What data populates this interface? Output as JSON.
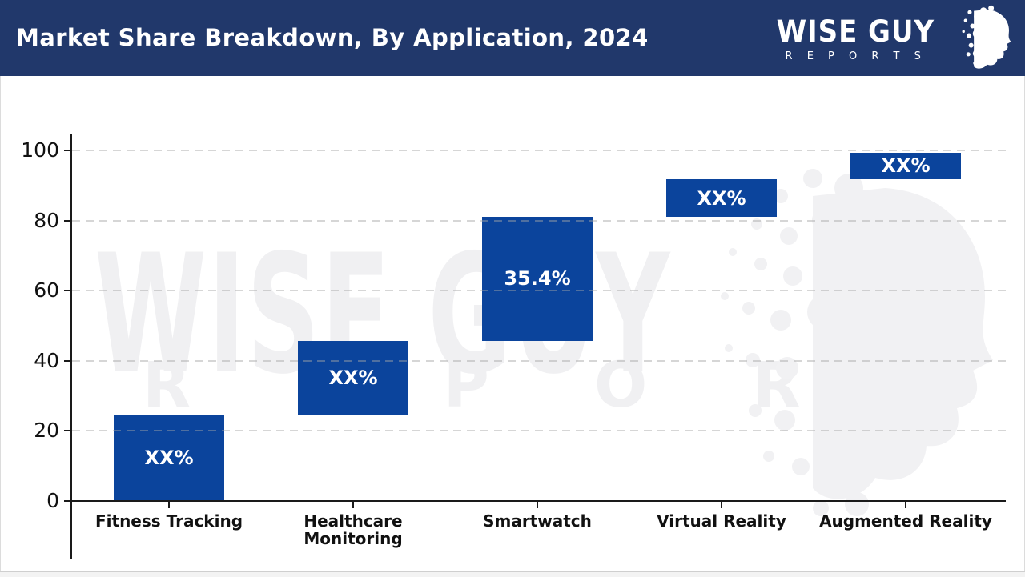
{
  "header": {
    "title": "Market Share Breakdown, By Application, 2024",
    "logo": {
      "line1": "WISE GUY",
      "line2": "R E P O R T S"
    }
  },
  "watermark": {
    "line1": "WISE GUY",
    "line2": "R E P O R T S"
  },
  "chart_data": {
    "type": "bar",
    "subtype": "waterfall",
    "title": "Market Share Breakdown, By Application, 2024",
    "xlabel": "",
    "ylabel": "",
    "categories": [
      "Fitness Tracking",
      "Healthcare\nMonitoring",
      "Smartwatch",
      "Virtual Reality",
      "Augmented Reality"
    ],
    "segments": [
      {
        "category": "Fitness Tracking",
        "start": 0,
        "end": 24.5,
        "label": "XX%"
      },
      {
        "category": "Healthcare Monitoring",
        "start": 24.5,
        "end": 45.7,
        "label": "XX%"
      },
      {
        "category": "Smartwatch",
        "start": 45.7,
        "end": 81.1,
        "label": "35.4%"
      },
      {
        "category": "Virtual Reality",
        "start": 81.1,
        "end": 91.7,
        "label": "XX%"
      },
      {
        "category": "Augmented Reality",
        "start": 91.7,
        "end": 99.4,
        "label": "XX%"
      }
    ],
    "yticks": [
      0,
      20,
      40,
      60,
      80,
      100
    ],
    "ylim": [
      0,
      105
    ],
    "grid": "horizontal-dashed",
    "legend": "none",
    "bar_color": "#0b449c",
    "bar_label_color": "#ffffff"
  },
  "colors": {
    "header_bg": "#21386b",
    "bar": "#0b449c",
    "grid": "#d9d9d9",
    "axis": "#1a1a1a",
    "watermark": "#f0f0f2"
  }
}
